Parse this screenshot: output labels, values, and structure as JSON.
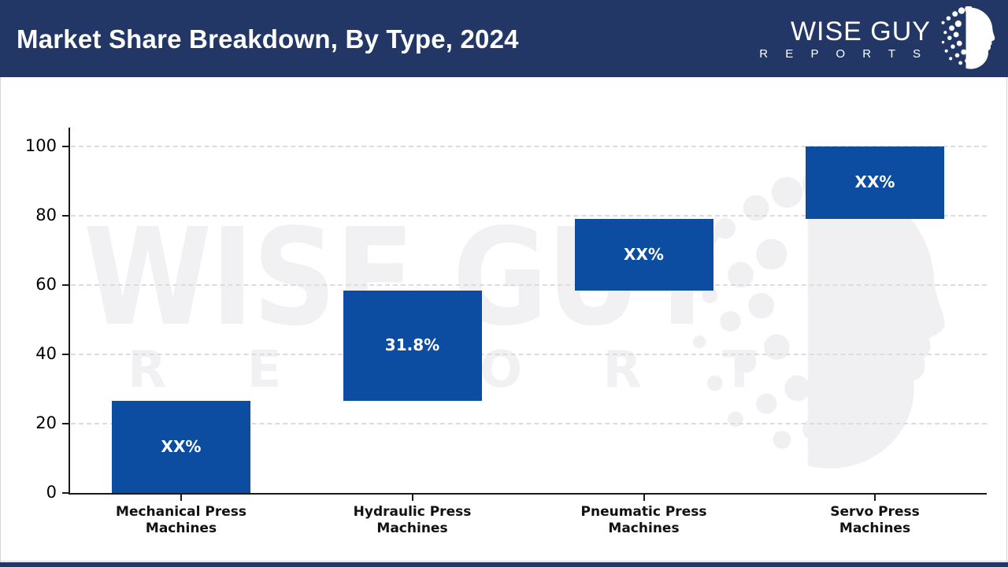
{
  "header": {
    "title": "Market Share Breakdown, By Type, 2024",
    "logo": {
      "name_top": "WISE GUY",
      "name_bottom": "R E P O R T S"
    }
  },
  "watermark": {
    "line1": "WISE GUY",
    "line2": "R E P O R T S"
  },
  "colors": {
    "header_bg": "#223766",
    "footer_strip": "#223766",
    "bar": "#0d4da1",
    "bar_label_text": "#ffffff",
    "gridline": "#dcdcdc",
    "axis": "#1a1a1a",
    "watermark": "#f1f1f3"
  },
  "chart_data": {
    "type": "bar",
    "variant": "waterfall",
    "title": "Market Share Breakdown, By Type, 2024",
    "categories": [
      [
        "Mechanical Press",
        "Machines"
      ],
      [
        "Hydraulic Press",
        "Machines"
      ],
      [
        "Pneumatic Press",
        "Machines"
      ],
      [
        "Servo Press",
        "Machines"
      ]
    ],
    "segments": [
      {
        "start": 0,
        "end": 26.5,
        "label": "XX%"
      },
      {
        "start": 26.5,
        "end": 58.3,
        "label": "31.8%"
      },
      {
        "start": 58.3,
        "end": 79.2,
        "label": "XX%"
      },
      {
        "start": 79.2,
        "end": 100,
        "label": "XX%"
      }
    ],
    "ylim": [
      0,
      100
    ],
    "yticks": [
      0,
      20,
      40,
      60,
      80,
      100
    ],
    "grid": "horizontal-dashed",
    "legend": "none",
    "xlabel": "",
    "ylabel": ""
  }
}
